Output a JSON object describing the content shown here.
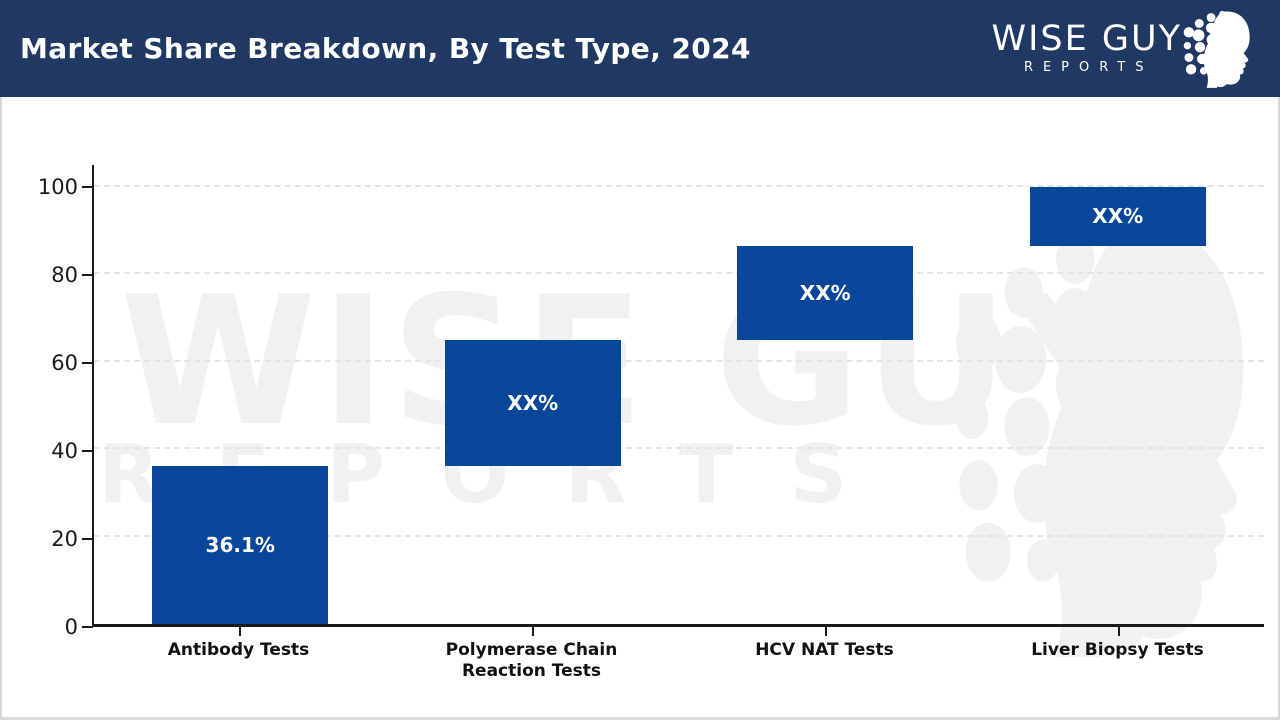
{
  "header": {
    "title": "Market Share Breakdown, By Test Type, 2024",
    "logo": {
      "line1": "WISE GUY",
      "line2": "REPORTS"
    }
  },
  "watermark": {
    "line1": "WISE GUY",
    "line2": "REPORTS"
  },
  "chart_data": {
    "type": "bar",
    "subtype": "waterfall",
    "title": "Market Share Breakdown, By Test Type, 2024",
    "categories": [
      "Antibody Tests",
      "Polymerase Chain Reaction Tests",
      "HCV NAT Tests",
      "Liver Biopsy Tests"
    ],
    "segments": [
      {
        "category": "Antibody Tests",
        "start": 0,
        "end": 36.1,
        "label": "36.1%"
      },
      {
        "category": "Polymerase Chain Reaction Tests",
        "start": 36.1,
        "end": 65,
        "label": "XX%"
      },
      {
        "category": "HCV NAT Tests",
        "start": 65,
        "end": 86.5,
        "label": "XX%"
      },
      {
        "category": "Liver Biopsy Tests",
        "start": 86.5,
        "end": 100,
        "label": "XX%"
      }
    ],
    "xlabel": "",
    "ylabel": "",
    "ylim": [
      0,
      105
    ],
    "yticks": [
      0,
      20,
      40,
      60,
      80,
      100
    ],
    "grid": "horizontal-dashed",
    "legend": "none",
    "bar_color": "#08469b",
    "bar_label_color": "#ffffff"
  },
  "colors": {
    "header_bg": "#203864",
    "bar": "#08469b",
    "watermark": "#f1f1f1",
    "gridline": "#e4e4e4",
    "axis": "#1a1a1a"
  }
}
